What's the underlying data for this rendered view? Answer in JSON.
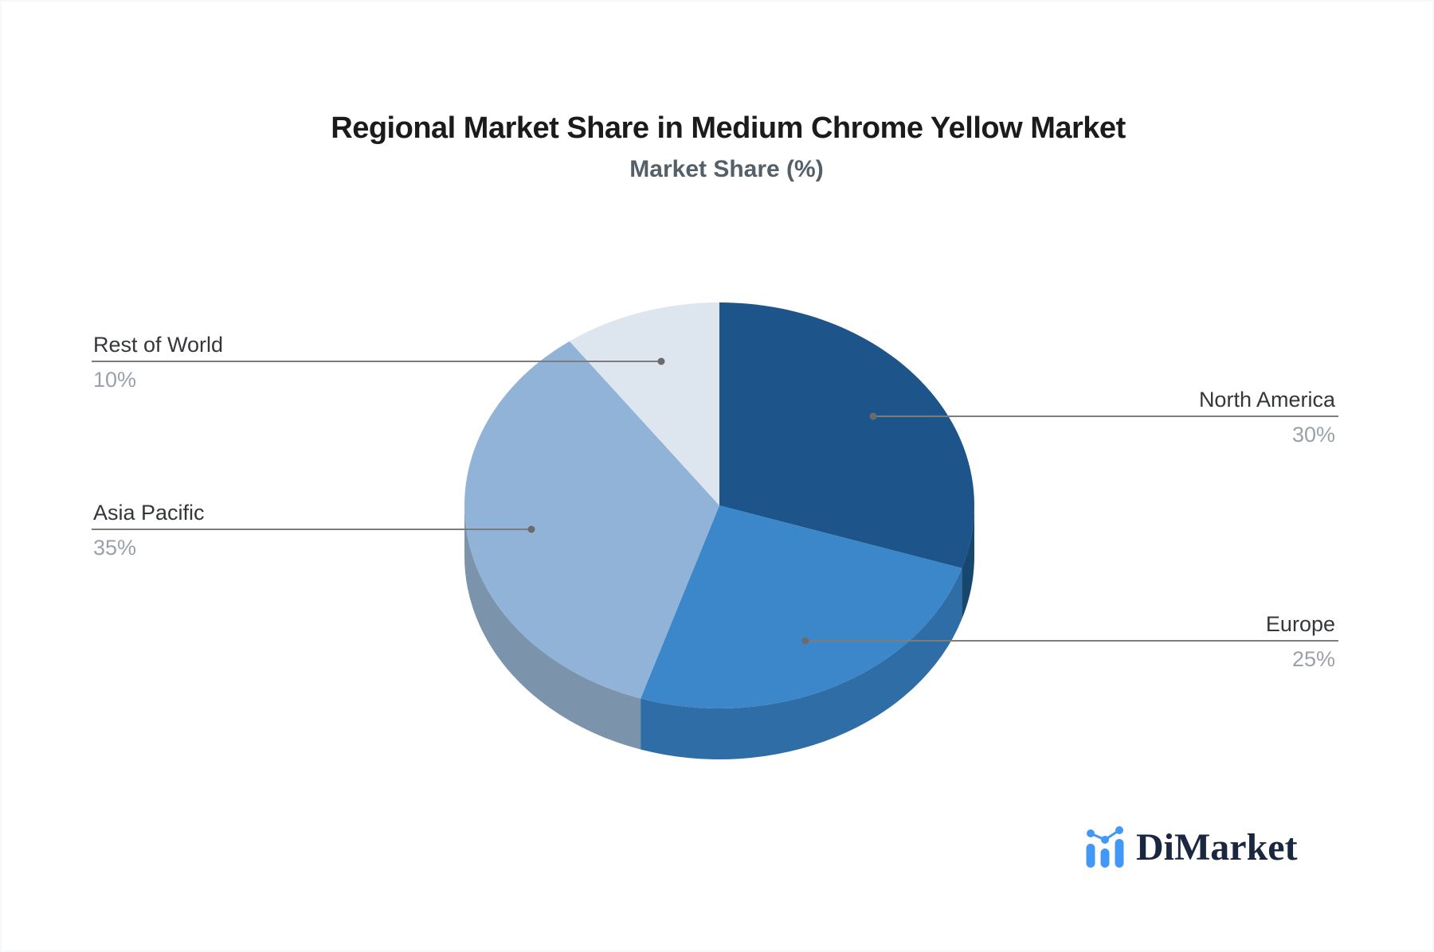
{
  "header": {
    "title": "Regional Market Share in Medium Chrome Yellow Market",
    "subtitle": "Market Share (%)"
  },
  "chart_data": {
    "type": "pie",
    "title": "Regional Market Share in Medium Chrome Yellow Market",
    "subtitle": "Market Share (%)",
    "unit": "%",
    "direction": "clockwise",
    "start_angle_deg": 0,
    "effect_3d": true,
    "legend_position": "callout-labels",
    "slices": [
      {
        "label": "North America",
        "value": 30,
        "display": "30%",
        "color": "#1D5489",
        "side_color": "#15476F"
      },
      {
        "label": "Europe",
        "value": 25,
        "display": "25%",
        "color": "#3B87CA",
        "side_color": "#2E6DA6"
      },
      {
        "label": "Asia Pacific",
        "value": 35,
        "display": "35%",
        "color": "#92B3D8",
        "side_color": "#7B93AB"
      },
      {
        "label": "Rest of World",
        "value": 10,
        "display": "10%",
        "color": "#DDE5EE",
        "side_color": "#B9C4D2"
      }
    ],
    "callout_line_color": "#7c7c7c",
    "callout_dot_color": "#6b6b6b",
    "label_name_color": "#33373b",
    "label_value_color": "#9aa1a8"
  },
  "logo": {
    "text": "DiMarket",
    "icon": "bar-line-chart-icon",
    "icon_color": "#4398F5",
    "text_color": "#1a2740"
  }
}
